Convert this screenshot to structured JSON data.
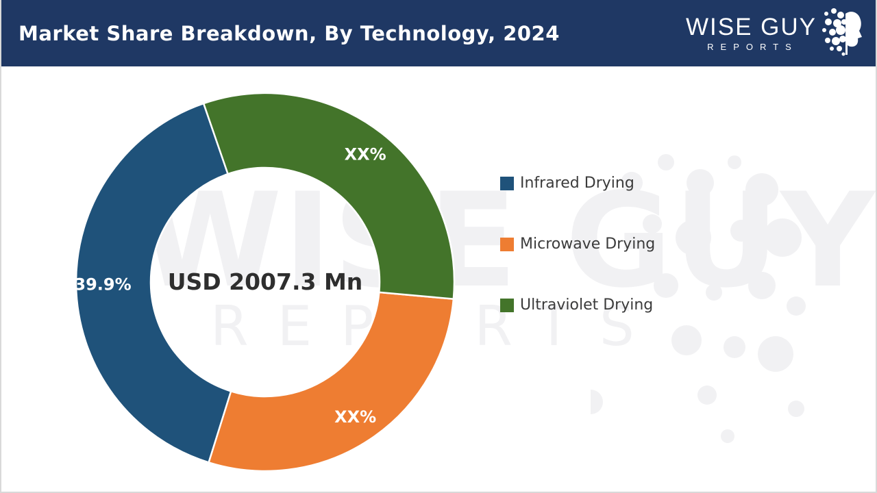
{
  "header": {
    "title": "Market Share Breakdown, By Technology, 2024",
    "logo": {
      "wordmark": "WISE GUY",
      "subtext": "REPORTS",
      "icon": "dotted-head-profile-icon"
    }
  },
  "watermark": {
    "line1": "WISE GUY",
    "line2": "REPORTS"
  },
  "chart_data": {
    "type": "pie",
    "subtype": "donut",
    "title": "Market Share Breakdown, By Technology, 2024",
    "center_label": "USD 2007.3 Mn",
    "start_angle_deg": 109,
    "direction": "counterclockwise",
    "legend_position": "right",
    "grid": false,
    "slices": [
      {
        "name": "Infrared Drying",
        "value": 39.9,
        "label": "39.9%",
        "color": "#1f527a"
      },
      {
        "name": "Microwave Drying",
        "value": 28.4,
        "label": "XX%",
        "color": "#ee7d32"
      },
      {
        "name": "Ultraviolet Drying",
        "value": 31.7,
        "label": "XX%",
        "color": "#43742a"
      }
    ]
  }
}
